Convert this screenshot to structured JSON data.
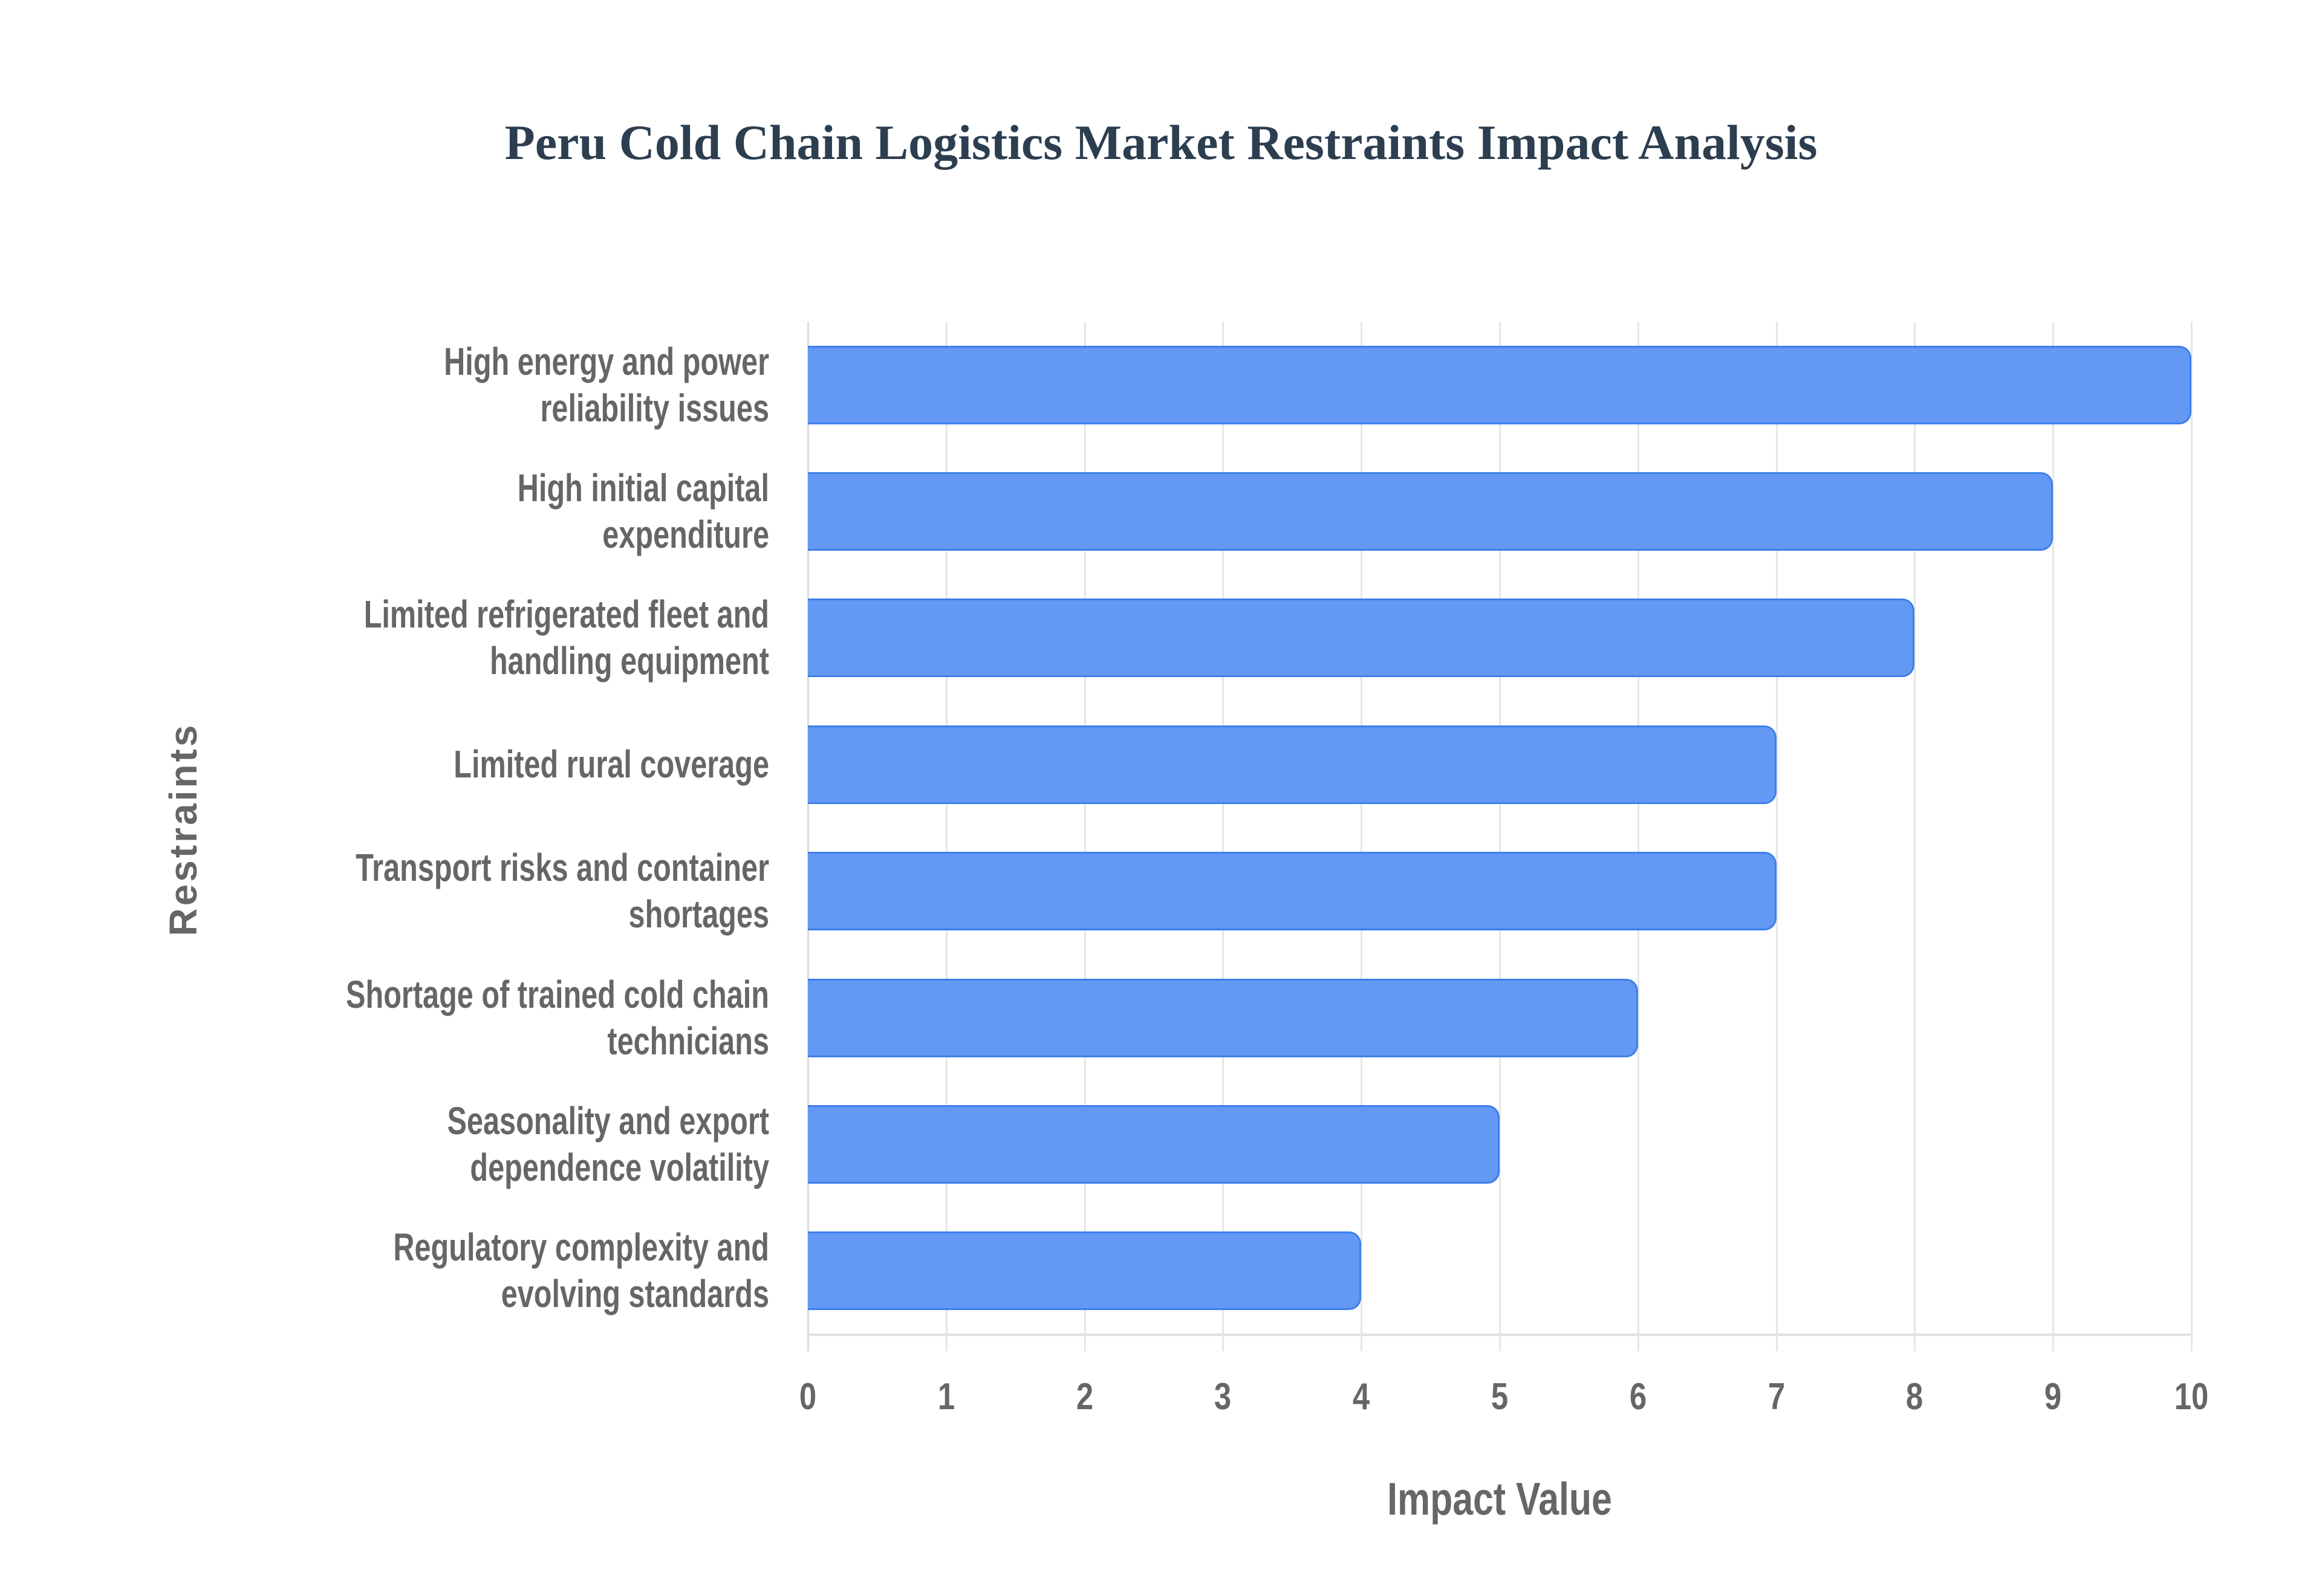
{
  "title": "Peru Cold Chain Logistics Market Restraints Impact Analysis",
  "colors": {
    "title": "#2C3E50",
    "bar_fill": "#6399F4",
    "bar_border": "#3D7FEA",
    "grid": "#E6E6E6",
    "axis_text": "#666666"
  },
  "chart_data": {
    "type": "bar",
    "orientation": "horizontal",
    "title": "Peru Cold Chain Logistics Market Restraints Impact Analysis",
    "xlabel": "Impact Value",
    "ylabel": "Restraints",
    "xlim": [
      0,
      10
    ],
    "xticks": [
      "0",
      "1",
      "2",
      "3",
      "4",
      "5",
      "6",
      "7",
      "8",
      "9",
      "10"
    ],
    "grid": true,
    "legend": null,
    "categories": [
      "High energy and power reliability issues",
      "High initial capital expenditure",
      "Limited refrigerated fleet and handling equipment",
      "Limited rural coverage",
      "Transport risks and container shortages",
      "Shortage of trained cold chain technicians",
      "Seasonality and export dependence volatility",
      "Regulatory complexity and evolving standards"
    ],
    "values": [
      10,
      9,
      8,
      7,
      7,
      6,
      5,
      4
    ]
  },
  "y_labels": [
    [
      "High energy and power",
      "reliability issues"
    ],
    [
      "High initial capital",
      "expenditure"
    ],
    [
      "Limited refrigerated fleet and",
      "handling equipment"
    ],
    [
      "Limited rural coverage"
    ],
    [
      "Transport risks and container",
      "shortages"
    ],
    [
      "Shortage of trained cold chain",
      "technicians"
    ],
    [
      "Seasonality and export",
      "dependence volatility"
    ],
    [
      "Regulatory complexity and",
      "evolving standards"
    ]
  ]
}
